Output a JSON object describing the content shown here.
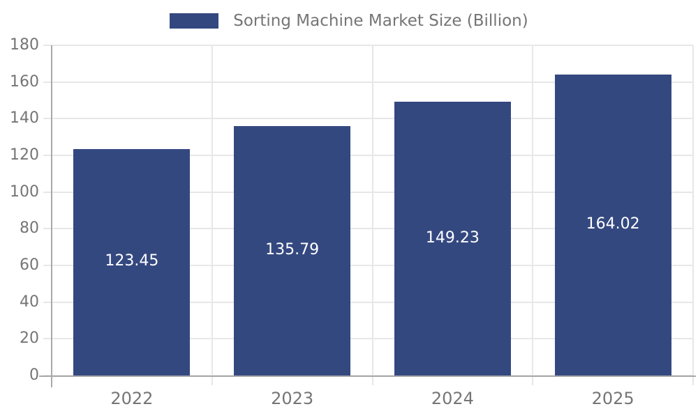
{
  "legend": {
    "label": "Sorting Machine Market Size (Billion)"
  },
  "chart_data": {
    "type": "bar",
    "title": "Sorting Machine Market Size (Billion)",
    "categories": [
      "2022",
      "2023",
      "2024",
      "2025"
    ],
    "values": [
      123.45,
      135.79,
      149.23,
      164.02
    ],
    "bar_labels": [
      "123.45",
      "135.79",
      "149.23",
      "164.02"
    ],
    "xlabel": "",
    "ylabel": "",
    "ylim": [
      0,
      180
    ],
    "yticks": [
      0,
      20,
      40,
      60,
      80,
      100,
      120,
      140,
      160,
      180
    ],
    "grid": true,
    "legend_position": "top-center",
    "bar_label_position": "center-inside",
    "colors": {
      "bar": "#344880",
      "bar_label": "#ffffff",
      "tick_text": "#757575",
      "legend_text": "#757575",
      "axis_line": "#a9a9a9",
      "grid_line": "#e7e7e7",
      "background": "#ffffff"
    }
  }
}
